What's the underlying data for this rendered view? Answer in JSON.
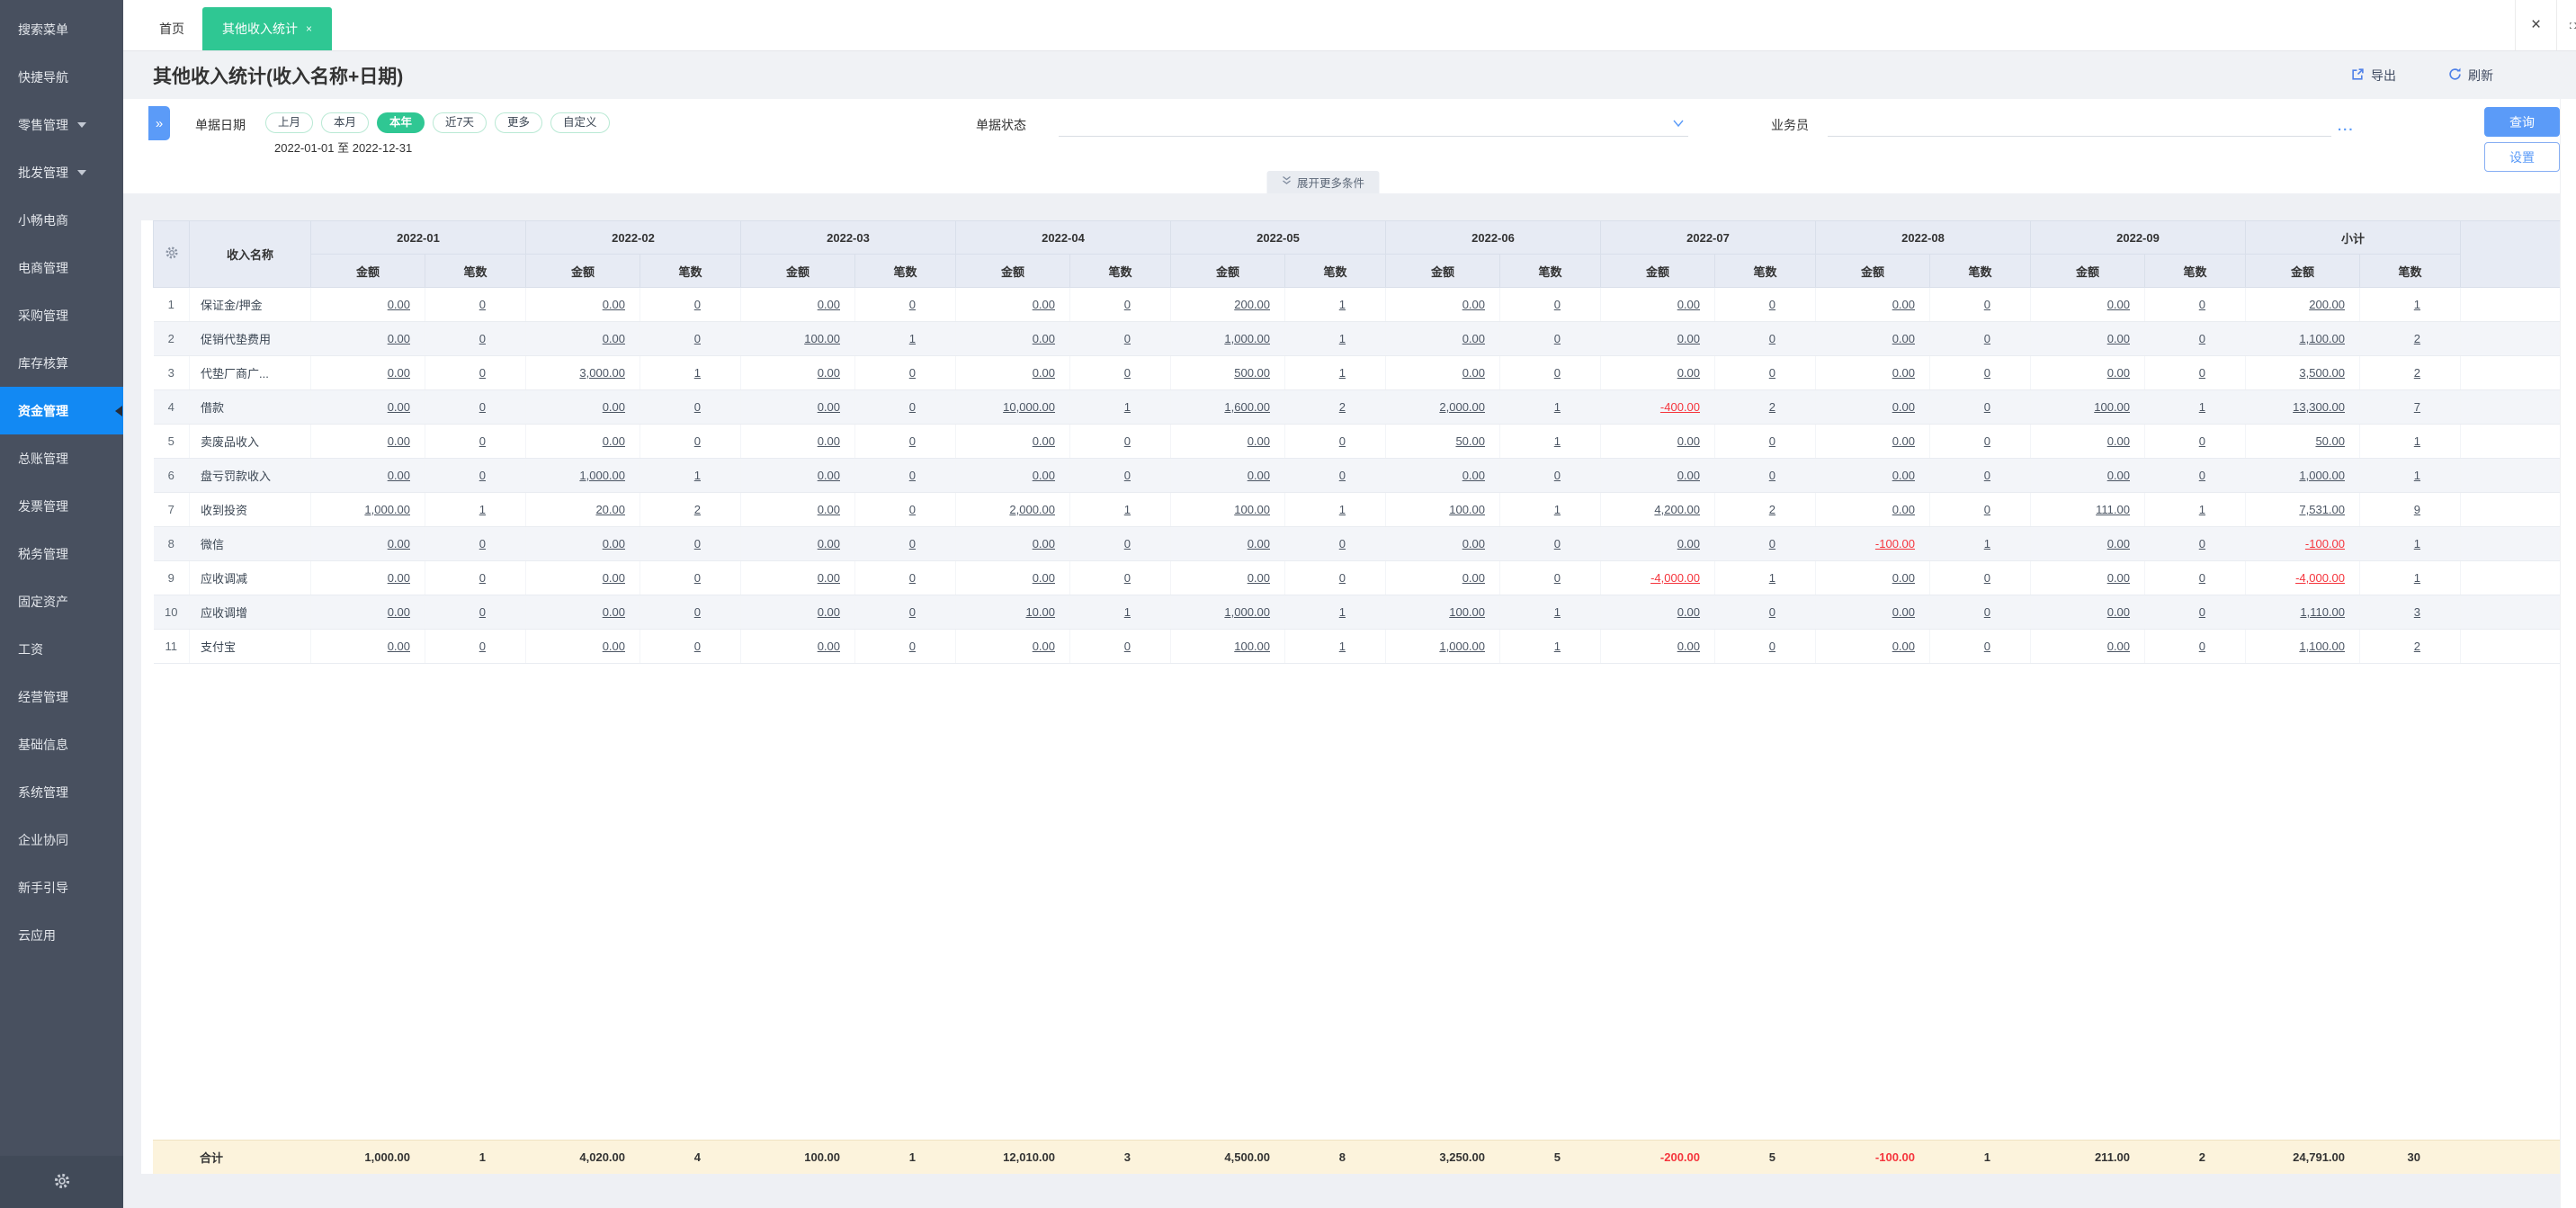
{
  "colors": {
    "sidebar_bg": "#48505f",
    "active_item_blue": "#1289f3",
    "tab_green": "#2fc793",
    "accent_blue": "#5b9bf8",
    "negative_red": "#f5353d",
    "table_header_bg": "#e7ebf4",
    "totals_row_bg": "#fcf3dc"
  },
  "sidebar": {
    "items": [
      {
        "label": "搜索菜单"
      },
      {
        "label": "快捷导航"
      },
      {
        "label": "零售管理",
        "caret": true
      },
      {
        "label": "批发管理",
        "caret": true
      },
      {
        "label": "小畅电商"
      },
      {
        "label": "电商管理"
      },
      {
        "label": "采购管理"
      },
      {
        "label": "库存核算"
      },
      {
        "label": "资金管理",
        "active": true
      },
      {
        "label": "总账管理"
      },
      {
        "label": "发票管理"
      },
      {
        "label": "税务管理"
      },
      {
        "label": "固定资产"
      },
      {
        "label": "工资"
      },
      {
        "label": "经营管理"
      },
      {
        "label": "基础信息"
      },
      {
        "label": "系统管理"
      },
      {
        "label": "企业协同"
      },
      {
        "label": "新手引导"
      },
      {
        "label": "云应用"
      }
    ]
  },
  "tabbar": {
    "home_tab": "首页",
    "active_tab": "其他收入统计",
    "close_glyph": "×"
  },
  "header": {
    "title": "其他收入统计(收入名称+日期)",
    "export_label": "导出",
    "refresh_label": "刷新"
  },
  "filters": {
    "date_label": "单据日期",
    "date_pills": [
      "上月",
      "本月",
      "本年",
      "近7天",
      "更多",
      "自定义"
    ],
    "active_pill": "本年",
    "date_range": "2022-01-01 至 2022-12-31",
    "status_label": "单据状态",
    "salesman_label": "业务员",
    "ellipsis": "...",
    "expand_more_label": "展开更多条件",
    "query_label": "查询",
    "settings_label": "设置"
  },
  "table": {
    "name_header": "收入名称",
    "amount_header": "金额",
    "count_header": "笔数",
    "months": [
      "2022-01",
      "2022-02",
      "2022-03",
      "2022-04",
      "2022-05",
      "2022-06",
      "2022-07",
      "2022-08",
      "2022-09"
    ],
    "subtotal_header": "小计",
    "rows": [
      {
        "no": 1,
        "name": "保证金/押金",
        "cells": [
          "0.00",
          "0",
          "0.00",
          "0",
          "0.00",
          "0",
          "0.00",
          "0",
          "200.00",
          "1",
          "0.00",
          "0",
          "0.00",
          "0",
          "0.00",
          "0",
          "0.00",
          "0",
          "200.00",
          "1"
        ]
      },
      {
        "no": 2,
        "name": "促销代垫费用",
        "cells": [
          "0.00",
          "0",
          "0.00",
          "0",
          "100.00",
          "1",
          "0.00",
          "0",
          "1,000.00",
          "1",
          "0.00",
          "0",
          "0.00",
          "0",
          "0.00",
          "0",
          "0.00",
          "0",
          "1,100.00",
          "2"
        ]
      },
      {
        "no": 3,
        "name": "代垫厂商广...",
        "cells": [
          "0.00",
          "0",
          "3,000.00",
          "1",
          "0.00",
          "0",
          "0.00",
          "0",
          "500.00",
          "1",
          "0.00",
          "0",
          "0.00",
          "0",
          "0.00",
          "0",
          "0.00",
          "0",
          "3,500.00",
          "2"
        ]
      },
      {
        "no": 4,
        "name": "借款",
        "cells": [
          "0.00",
          "0",
          "0.00",
          "0",
          "0.00",
          "0",
          "10,000.00",
          "1",
          "1,600.00",
          "2",
          "2,000.00",
          "1",
          "-400.00",
          "2",
          "0.00",
          "0",
          "100.00",
          "1",
          "13,300.00",
          "7"
        ]
      },
      {
        "no": 5,
        "name": "卖废品收入",
        "cells": [
          "0.00",
          "0",
          "0.00",
          "0",
          "0.00",
          "0",
          "0.00",
          "0",
          "0.00",
          "0",
          "50.00",
          "1",
          "0.00",
          "0",
          "0.00",
          "0",
          "0.00",
          "0",
          "50.00",
          "1"
        ]
      },
      {
        "no": 6,
        "name": "盘亏罚款收入",
        "cells": [
          "0.00",
          "0",
          "1,000.00",
          "1",
          "0.00",
          "0",
          "0.00",
          "0",
          "0.00",
          "0",
          "0.00",
          "0",
          "0.00",
          "0",
          "0.00",
          "0",
          "0.00",
          "0",
          "1,000.00",
          "1"
        ]
      },
      {
        "no": 7,
        "name": "收到投资",
        "cells": [
          "1,000.00",
          "1",
          "20.00",
          "2",
          "0.00",
          "0",
          "2,000.00",
          "1",
          "100.00",
          "1",
          "100.00",
          "1",
          "4,200.00",
          "2",
          "0.00",
          "0",
          "111.00",
          "1",
          "7,531.00",
          "9"
        ]
      },
      {
        "no": 8,
        "name": "微信",
        "cells": [
          "0.00",
          "0",
          "0.00",
          "0",
          "0.00",
          "0",
          "0.00",
          "0",
          "0.00",
          "0",
          "0.00",
          "0",
          "0.00",
          "0",
          "-100.00",
          "1",
          "0.00",
          "0",
          "-100.00",
          "1"
        ]
      },
      {
        "no": 9,
        "name": "应收调减",
        "cells": [
          "0.00",
          "0",
          "0.00",
          "0",
          "0.00",
          "0",
          "0.00",
          "0",
          "0.00",
          "0",
          "0.00",
          "0",
          "-4,000.00",
          "1",
          "0.00",
          "0",
          "0.00",
          "0",
          "-4,000.00",
          "1"
        ]
      },
      {
        "no": 10,
        "name": "应收调增",
        "cells": [
          "0.00",
          "0",
          "0.00",
          "0",
          "0.00",
          "0",
          "10.00",
          "1",
          "1,000.00",
          "1",
          "100.00",
          "1",
          "0.00",
          "0",
          "0.00",
          "0",
          "0.00",
          "0",
          "1,110.00",
          "3"
        ]
      },
      {
        "no": 11,
        "name": "支付宝",
        "cells": [
          "0.00",
          "0",
          "0.00",
          "0",
          "0.00",
          "0",
          "0.00",
          "0",
          "100.00",
          "1",
          "1,000.00",
          "1",
          "0.00",
          "0",
          "0.00",
          "0",
          "0.00",
          "0",
          "1,100.00",
          "2"
        ]
      }
    ],
    "total_label": "合计",
    "totals": [
      "1,000.00",
      "1",
      "4,020.00",
      "4",
      "100.00",
      "1",
      "12,010.00",
      "3",
      "4,500.00",
      "8",
      "3,250.00",
      "5",
      "-200.00",
      "5",
      "-100.00",
      "1",
      "211.00",
      "2",
      "24,791.00",
      "30"
    ]
  }
}
